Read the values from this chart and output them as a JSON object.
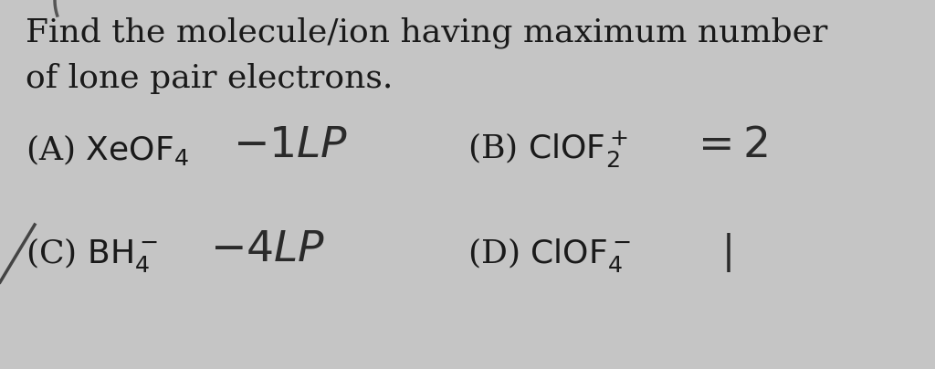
{
  "background_color": "#c5c5c5",
  "title_line1": "Find the molecule/ion having maximum number",
  "title_line2": "of lone pair electrons.",
  "font_size_main": 26,
  "font_size_options": 26,
  "font_size_handwritten": 34,
  "text_color": "#1a1a1a",
  "handwritten_color": "#2a2a2a",
  "figwidth": 10.24,
  "figheight": 4.04,
  "dpi": 100
}
